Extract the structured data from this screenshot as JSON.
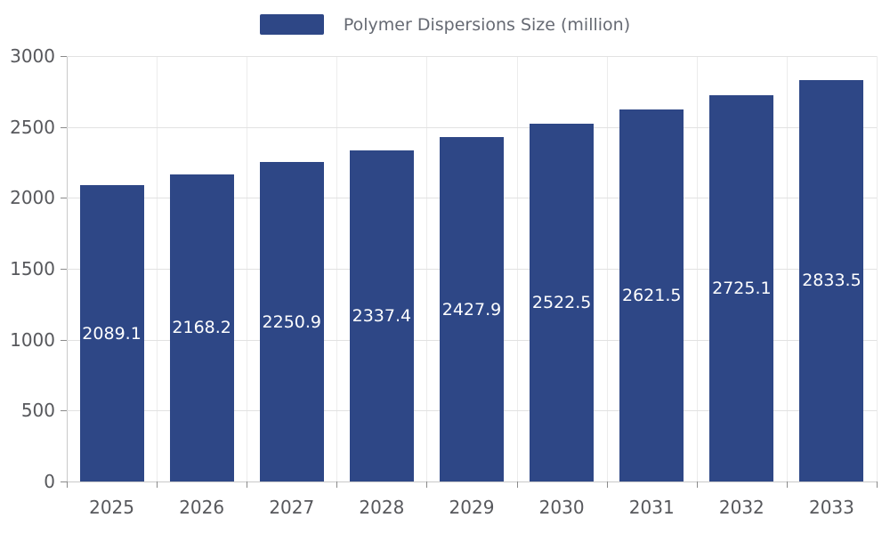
{
  "chart_data": {
    "type": "bar",
    "title": "Polymer Dispersions Size (million)",
    "categories": [
      "2025",
      "2026",
      "2027",
      "2028",
      "2029",
      "2030",
      "2031",
      "2032",
      "2033"
    ],
    "values": [
      2089.1,
      2168.2,
      2250.9,
      2337.4,
      2427.9,
      2522.5,
      2621.5,
      2725.1,
      2833.5
    ],
    "value_labels": [
      "2089.1",
      "2168.2",
      "2250.9",
      "2337.4",
      "2427.9",
      "2522.5",
      "2621.5",
      "2725.1",
      "2833.5"
    ],
    "ylabel": "",
    "xlabel": "",
    "ylim": [
      0,
      3000
    ],
    "yticks": [
      0,
      500,
      1000,
      1500,
      2000,
      2500,
      3000
    ],
    "grid": true,
    "legend_position": "top-center",
    "bar_color": "#2e4786",
    "value_label_color": "#ffffff",
    "tick_label_color": "#57585c"
  }
}
